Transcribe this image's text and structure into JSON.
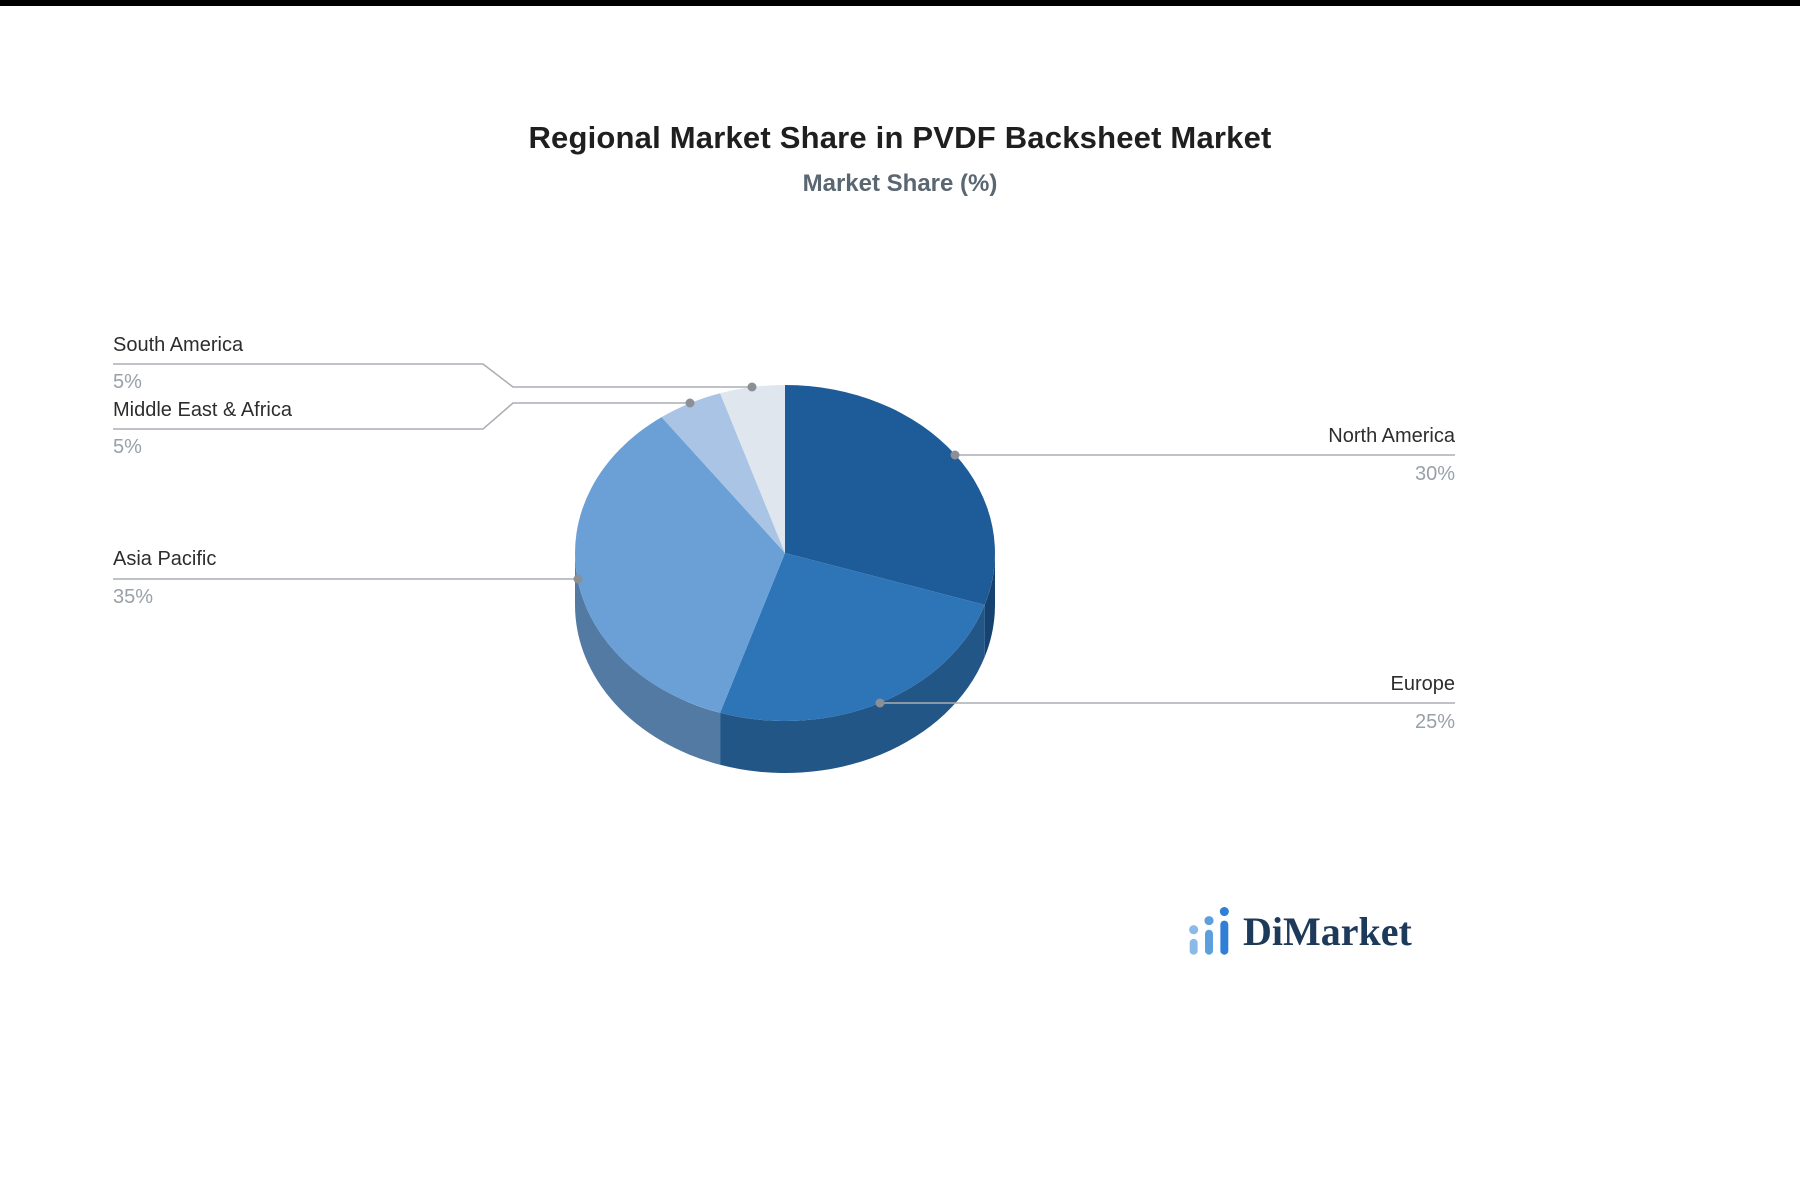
{
  "header": {
    "title": "Regional Market Share in PVDF Backsheet Market",
    "subtitle": "Market Share (%)"
  },
  "chart_data": {
    "type": "pie",
    "title": "Regional Market Share in PVDF Backsheet Market",
    "subtitle": "Market Share (%)",
    "unit": "%",
    "start_angle_deg": 0,
    "three_d": true,
    "legend": false,
    "label_position": "edge-aligned-with-leader-lines",
    "background": "#ffffff",
    "slices": [
      {
        "label": "North America",
        "value": 30,
        "display": "30%",
        "color": "#1e5c99",
        "side_color": "#15426e"
      },
      {
        "label": "Europe",
        "value": 25,
        "display": "25%",
        "color": "#2e75b8",
        "side_color": "#225687"
      },
      {
        "label": "Asia Pacific",
        "value": 35,
        "display": "35%",
        "color": "#6ba0d6",
        "side_color": "#527aa3"
      },
      {
        "label": "Middle East & Africa",
        "value": 5,
        "display": "5%",
        "color": "#a9c4e4",
        "side_color": "#8095ab"
      },
      {
        "label": "South America",
        "value": 5,
        "display": "5%",
        "color": "#e0e6ed",
        "side_color": "#aab0b8"
      }
    ],
    "line_color": "#aaaeb3",
    "dot_color": "#8b9096",
    "value_text_color": "#98a0a8"
  },
  "watermark": {
    "brand": "DiMarket"
  }
}
